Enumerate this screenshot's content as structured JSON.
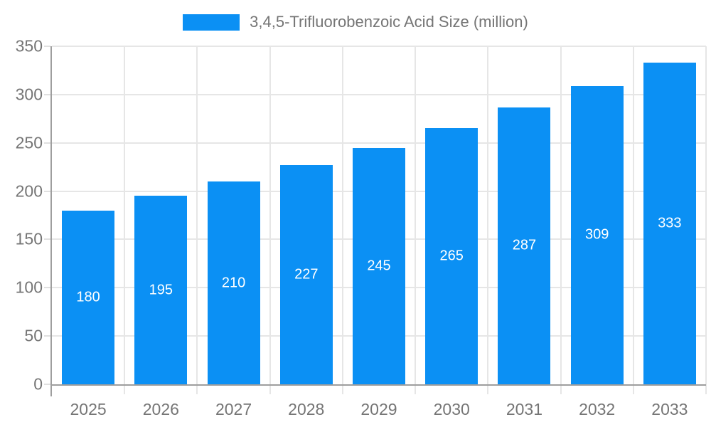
{
  "chart_data": {
    "type": "bar",
    "title": "3,4,5-Trifluorobenzoic Acid Size (million)",
    "legend": {
      "label": "3,4,5-Trifluorobenzoic Acid Size (million)",
      "position": "top"
    },
    "categories": [
      "2025",
      "2026",
      "2027",
      "2028",
      "2029",
      "2030",
      "2031",
      "2032",
      "2033"
    ],
    "series": [
      {
        "name": "3,4,5-Trifluorobenzoic Acid Size (million)",
        "values": [
          180,
          195,
          210,
          227,
          245,
          265,
          287,
          309,
          333
        ]
      }
    ],
    "value_labels": [
      "180",
      "195",
      "210",
      "227",
      "245",
      "265",
      "287",
      "309",
      "333"
    ],
    "xlabel": "",
    "ylabel": "",
    "ylim": [
      0,
      350
    ],
    "yticks": [
      0,
      50,
      100,
      150,
      200,
      250,
      300,
      350
    ],
    "grid": true,
    "colors": {
      "bar": "#0b90f4",
      "value_label": "#ffffff",
      "axis_text": "#757575",
      "grid_line": "#e6e6e6",
      "axis_line": "#9e9e9e"
    }
  }
}
